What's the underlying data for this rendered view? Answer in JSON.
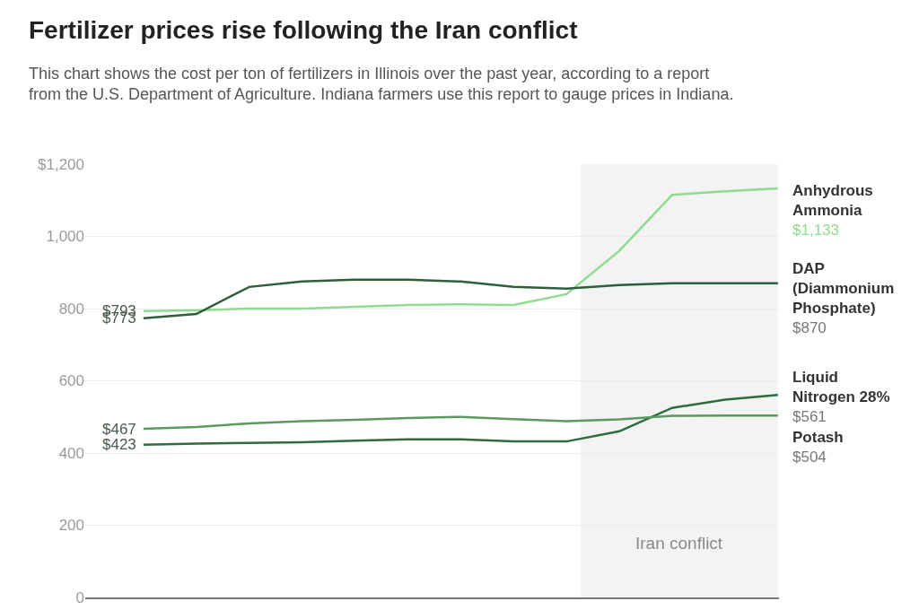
{
  "chart_data": {
    "type": "line",
    "title": "Fertilizer prices rise following the Iran conflict",
    "subtitle": "This chart shows the cost per ton of fertilizers in Illinois over the past year, according to a report from the U.S. Department of Agriculture. Indiana farmers use this report to gauge prices in Indiana.",
    "categories": [
      null,
      null,
      null,
      null,
      null,
      null,
      null,
      null,
      null,
      null,
      null,
      null,
      null
    ],
    "series": [
      {
        "name": "Anhydrous Ammonia",
        "color": "#8fdc8f",
        "values": [
          793,
          795,
          800,
          800,
          805,
          810,
          812,
          810,
          840,
          960,
          1115,
          1125,
          1133
        ],
        "value_labels": [
          "$793",
          null,
          null,
          null,
          null,
          null,
          null,
          null,
          null,
          null,
          null,
          null,
          "$1,133"
        ]
      },
      {
        "name": "DAP (Diammonium Phosphate)",
        "color": "#2f5e3a",
        "values": [
          773,
          785,
          860,
          875,
          880,
          880,
          875,
          860,
          855,
          865,
          870,
          870,
          870
        ],
        "value_labels": [
          "$773",
          null,
          null,
          null,
          null,
          null,
          null,
          null,
          null,
          null,
          null,
          null,
          "$870"
        ]
      },
      {
        "name": "Liquid Nitrogen 28%",
        "color": "#2e6b3e",
        "values": [
          423,
          426,
          428,
          430,
          434,
          438,
          438,
          432,
          432,
          460,
          525,
          548,
          561
        ],
        "value_labels": [
          "$423",
          null,
          null,
          null,
          null,
          null,
          null,
          null,
          null,
          null,
          null,
          null,
          "$561"
        ]
      },
      {
        "name": "Potash",
        "color": "#5a9a5e",
        "values": [
          467,
          472,
          482,
          488,
          492,
          497,
          500,
          494,
          488,
          493,
          503,
          504,
          504
        ],
        "value_labels": [
          "$467",
          null,
          null,
          null,
          null,
          null,
          null,
          null,
          null,
          null,
          null,
          null,
          "$504"
        ]
      }
    ],
    "ylim": [
      0,
      1200
    ],
    "yticks": [
      0,
      200,
      400,
      600,
      800,
      {
        "value": 1000,
        "label": "1,000"
      },
      {
        "value": 1200,
        "label": "$1,200"
      }
    ],
    "annotations": [
      "Iran conflict"
    ],
    "grid": "y",
    "legend": false,
    "tick_labels": "y",
    "marker": "none",
    "line_style": "solid"
  }
}
